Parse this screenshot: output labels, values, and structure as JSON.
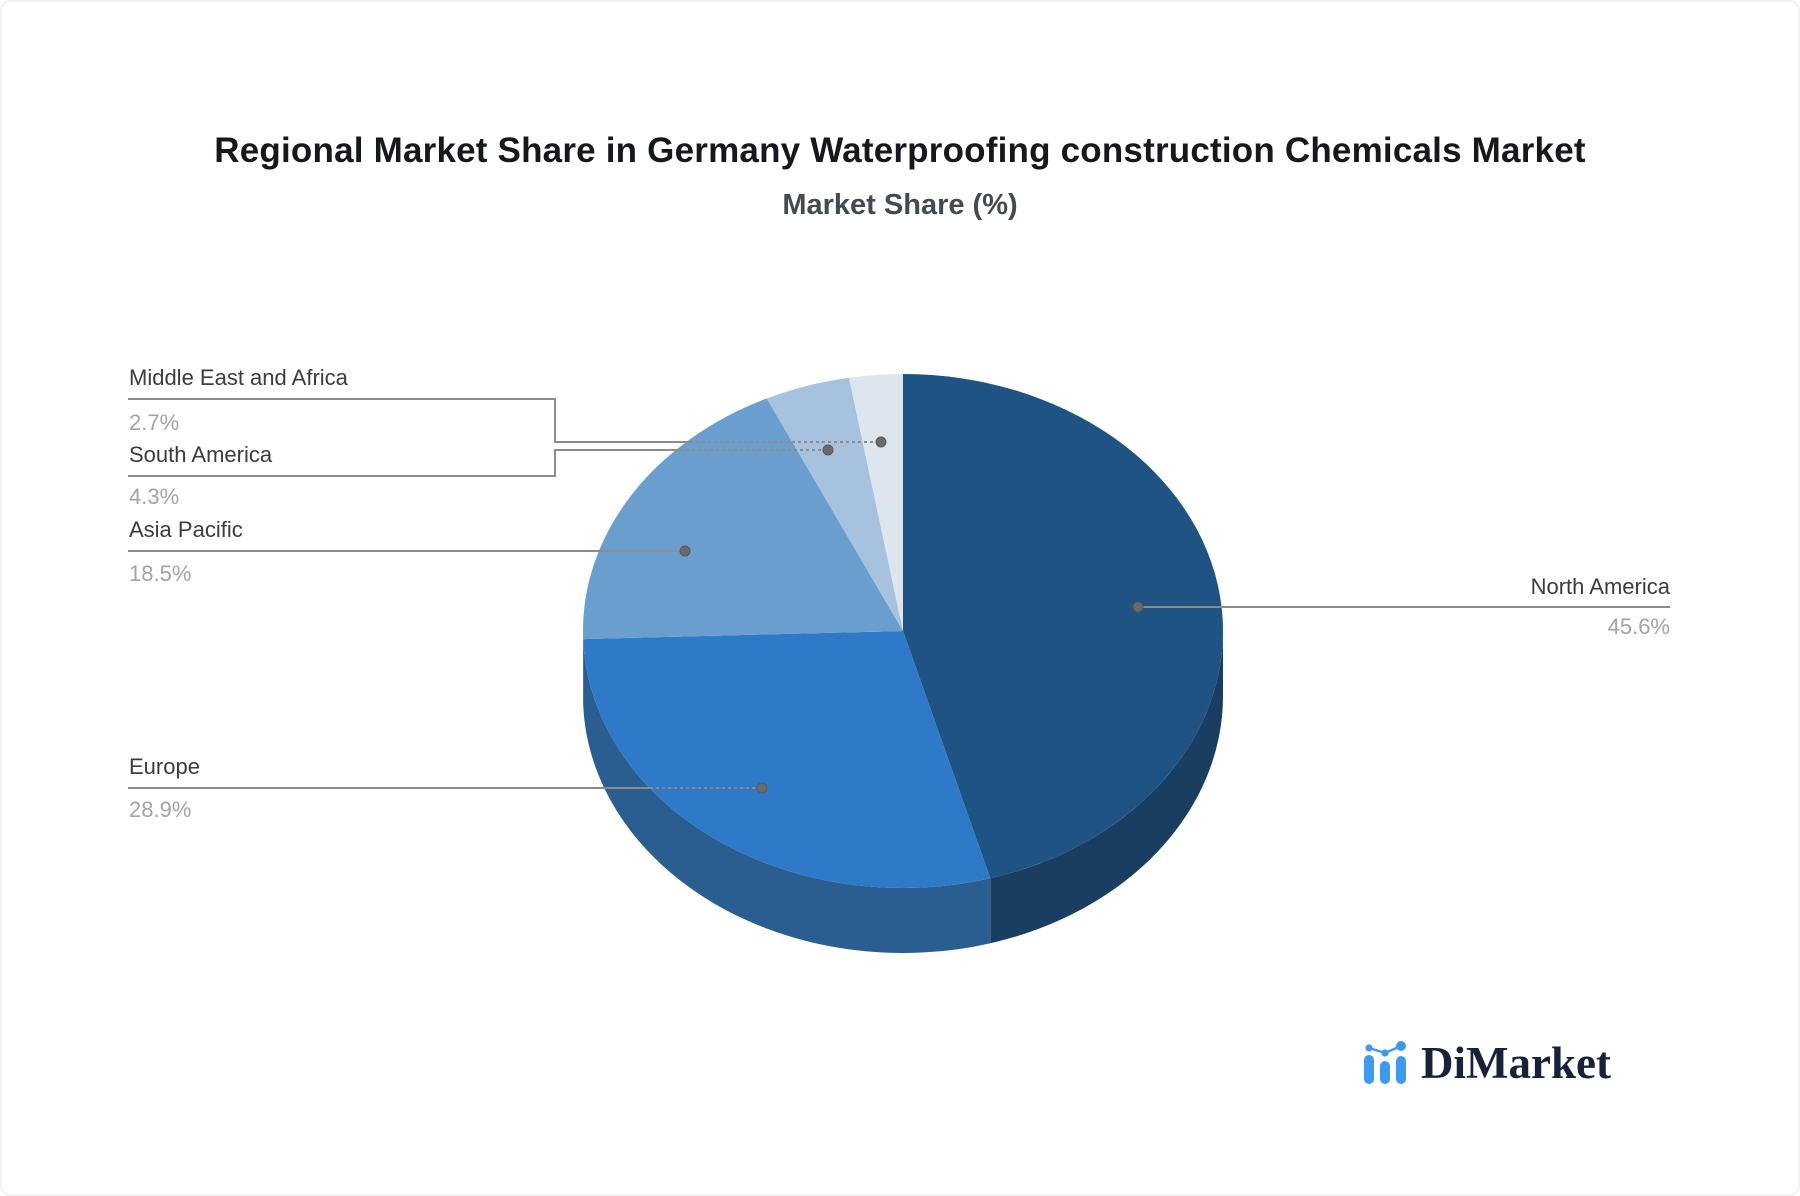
{
  "chart_data": {
    "type": "pie",
    "title": "Regional Market Share in Germany Waterproofing construction Chemicals Market",
    "subtitle": "Market Share (%)",
    "value_suffix": "%",
    "start_angle_deg": 0,
    "direction": "clockwise",
    "effect": "3d",
    "legend_position": "none",
    "slices": [
      {
        "label": "North America",
        "value": 45.6,
        "color": "#1F5384",
        "side_color": "#193E62"
      },
      {
        "label": "Europe",
        "value": 28.9,
        "color": "#2F7AC8",
        "side_color": "#2A5E91"
      },
      {
        "label": "Asia Pacific",
        "value": 18.5,
        "color": "#699ECF",
        "side_color": "#527BA2"
      },
      {
        "label": "South America",
        "value": 4.3,
        "color": "#A7C2DE"
      },
      {
        "label": "Middle East and Africa",
        "value": 2.7,
        "color": "#DDE6EF"
      }
    ]
  },
  "logo": {
    "text": "DiMarket",
    "icon": "bar-chart-logo-icon",
    "text_color": "#16223C",
    "accent_color": "#3D9AF0"
  },
  "styles": {
    "title_color": "#15181D",
    "subtitle_color": "#444A54",
    "label_color": "#3C3C3C",
    "value_color": "#A3A3A3",
    "connector_color": "#8C8C8C",
    "dot_color": "#6B6B6B"
  }
}
